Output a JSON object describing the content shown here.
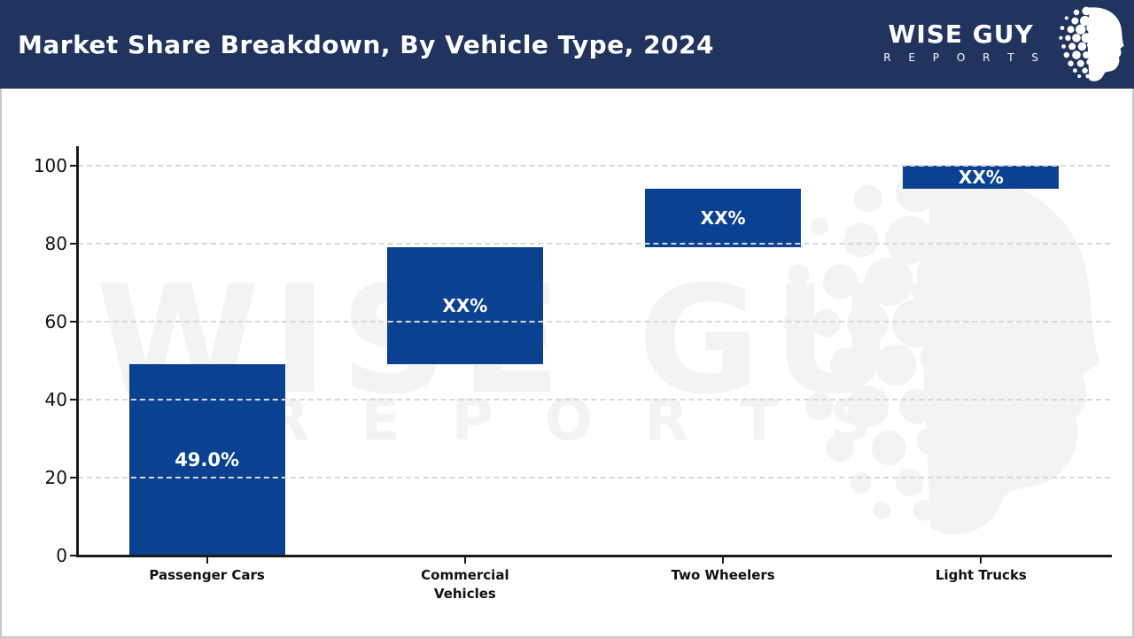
{
  "header": {
    "title": "Market Share Breakdown, By Vehicle Type, 2024",
    "logo": {
      "name": "Wise Guy Reports",
      "line1": "WISE GUY",
      "line2": "R E P O R T S"
    }
  },
  "watermark": {
    "line1": "WISE GUY",
    "line2": "R E P O R T S"
  },
  "colors": {
    "header_bg": "#20345e",
    "bar_blue": "#0b4191",
    "bar_label_text": "#ffffff",
    "gridline": "#d8d8d8",
    "axis": "#1a1a1a",
    "watermark_gray": "#f3f3f4",
    "frame_border": "#c8c8c8"
  },
  "chart_data": {
    "type": "bar",
    "subtype": "waterfall",
    "title": "Market Share Breakdown, By Vehicle Type, 2024",
    "categories": [
      "Passenger Cars",
      "Commercial Vehicles",
      "Two Wheelers",
      "Light Trucks"
    ],
    "category_lines": [
      [
        "Passenger Cars"
      ],
      [
        "Commercial",
        "Vehicles"
      ],
      [
        "Two Wheelers"
      ],
      [
        "Light Trucks"
      ]
    ],
    "segments": [
      {
        "category": "Passenger Cars",
        "start": 0,
        "end": 49,
        "value": 49,
        "label": "49.0%"
      },
      {
        "category": "Commercial Vehicles",
        "start": 49,
        "end": 79,
        "value": 30,
        "label": "XX%"
      },
      {
        "category": "Two Wheelers",
        "start": 79,
        "end": 94,
        "value": 15,
        "label": "XX%"
      },
      {
        "category": "Light Trucks",
        "start": 94,
        "end": 100,
        "value": 6,
        "label": "XX%"
      }
    ],
    "yticks": [
      0,
      20,
      40,
      60,
      80,
      100
    ],
    "ylim": [
      0,
      105
    ],
    "xlabel": "",
    "ylabel": "",
    "grid": "horizontal-dashed",
    "legend": "none"
  }
}
